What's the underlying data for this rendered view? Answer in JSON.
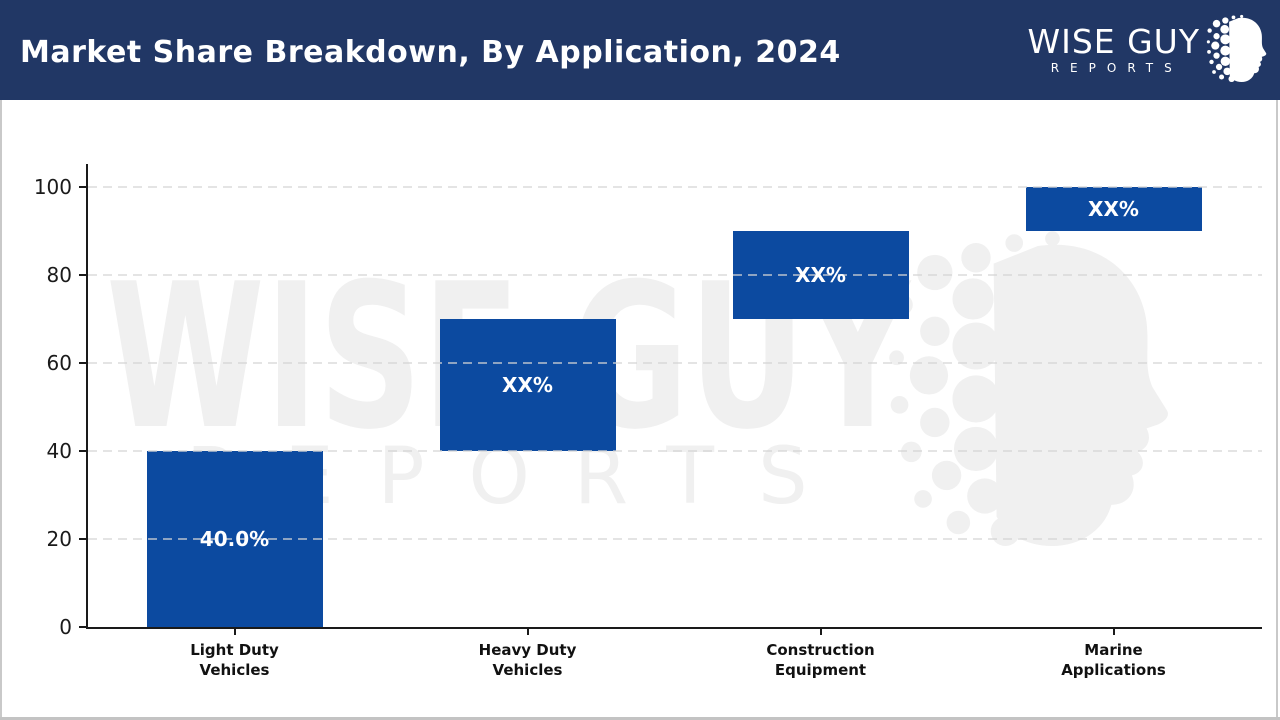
{
  "header": {
    "title": "Market Share Breakdown, By Application, 2024",
    "logo": {
      "wordmark": "WISE GUY",
      "sub": "REPORTS"
    }
  },
  "watermark": {
    "wordmark": "WISE GUY",
    "sub": "REPORTS"
  },
  "chart_data": {
    "type": "bar",
    "subtype": "floating-waterfall",
    "title": "Market Share Breakdown, By Application, 2024",
    "categories": [
      "Light Duty\nVehicles",
      "Heavy Duty\nVehicles",
      "Construction\nEquipment",
      "Marine\nApplications"
    ],
    "segments": [
      {
        "category": "Light Duty Vehicles",
        "start": 0,
        "end": 40,
        "label": "40.0%"
      },
      {
        "category": "Heavy Duty Vehicles",
        "start": 40,
        "end": 70,
        "label": "XX%"
      },
      {
        "category": "Construction Equipment",
        "start": 70,
        "end": 90,
        "label": "XX%"
      },
      {
        "category": "Marine Applications",
        "start": 90,
        "end": 100,
        "label": "XX%"
      }
    ],
    "xlabel": "",
    "ylabel": "",
    "ylim": [
      0,
      100
    ],
    "yticks": [
      0,
      20,
      40,
      60,
      80,
      100
    ],
    "grid": "horizontal-dashed-over-bars",
    "legend": "none",
    "bar_color": "#0c4aa0",
    "bar_label_color": "#ffffff"
  },
  "colors": {
    "header_bg": "#213765",
    "bar": "#0c4aa0",
    "grid": "#d5d5d5",
    "axis": "#1a1a1a",
    "watermark": "#f0f0f0",
    "page_border": "#c9c9c9"
  }
}
